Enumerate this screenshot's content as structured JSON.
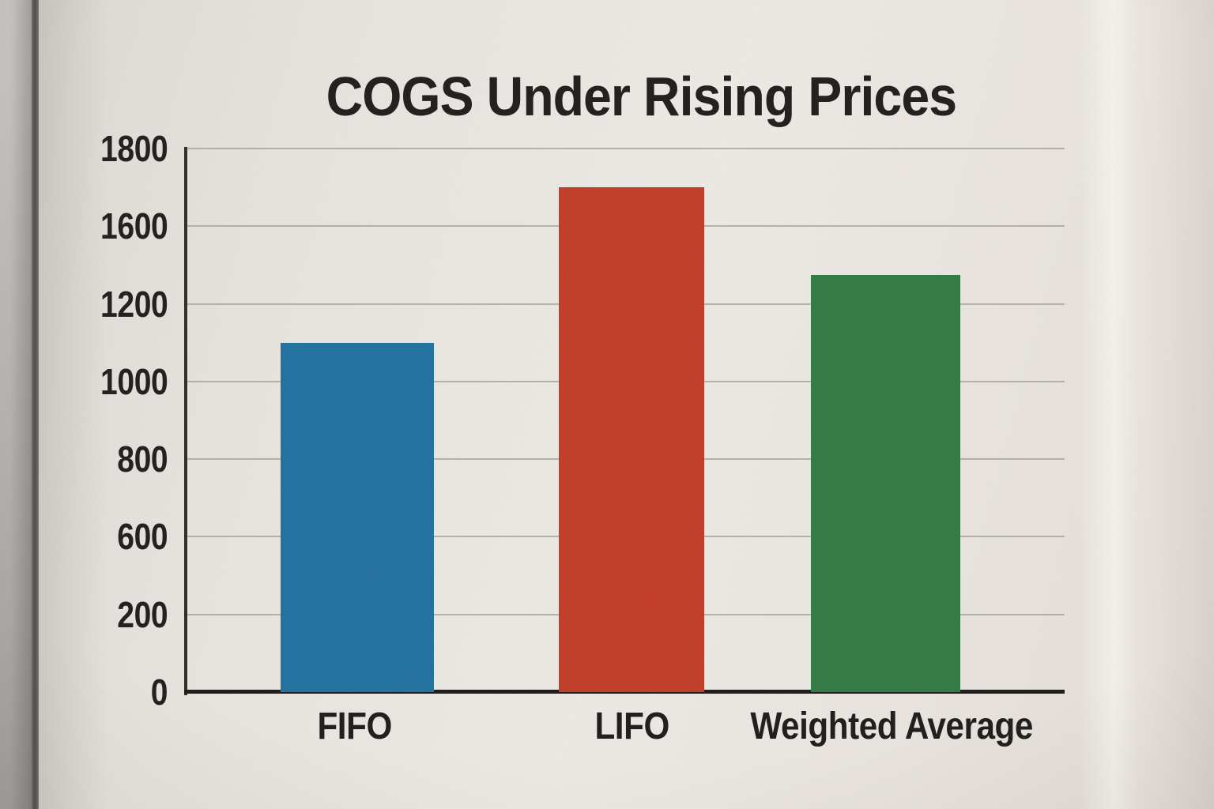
{
  "chart_data": {
    "type": "bar",
    "title": "COGS Under Rising Prices",
    "categories": [
      "FIFO",
      "LIFO",
      "Weighted Average"
    ],
    "values": [
      1100,
      1700,
      1350
    ],
    "bar_colors": [
      "#20709f",
      "#c13b27",
      "#317943"
    ],
    "xlabel": "",
    "ylabel": "",
    "ylim": [
      0,
      1800
    ],
    "grid": true,
    "legend": "none",
    "y_axis": {
      "tick_labels_top_to_bottom": [
        "1800",
        "1600",
        "1200",
        "1000",
        "800",
        "600",
        "200",
        "0"
      ],
      "tick_values_bottom_to_top": [
        0,
        200,
        600,
        800,
        1000,
        1200,
        1600,
        1800
      ],
      "note": "gridlines evenly spaced; 1400 and 400 tick labels are not shown on the printed chart"
    }
  },
  "colors": {
    "paper": "#e8e4e0",
    "wall": "#b3afac",
    "paper_edge": "#55524d",
    "grid_line": "#a19e9b",
    "axis_line": "#23211e",
    "text": "#1f1d1b"
  }
}
